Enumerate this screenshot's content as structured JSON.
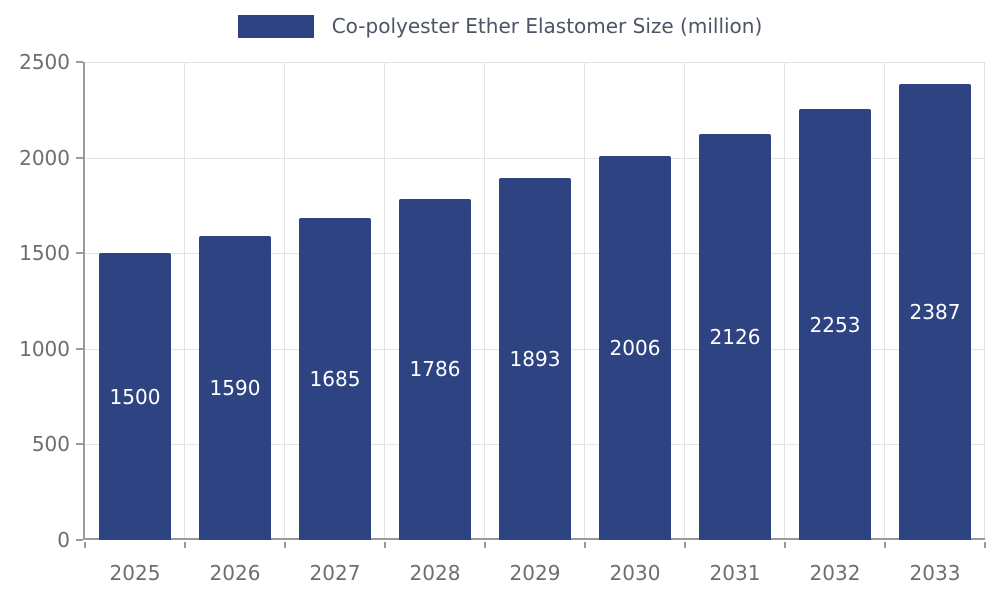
{
  "chart_data": {
    "type": "bar",
    "title": "Co-polyester Ether Elastomer Size (million)",
    "categories": [
      "2025",
      "2026",
      "2027",
      "2028",
      "2029",
      "2030",
      "2031",
      "2032",
      "2033"
    ],
    "values": [
      1500,
      1590,
      1685,
      1786,
      1893,
      2006,
      2126,
      2253,
      2387
    ],
    "value_labels": [
      "1500",
      "1590",
      "1685",
      "1786",
      "1893",
      "2006",
      "2126",
      "2253",
      "2387"
    ],
    "xlabel": "",
    "ylabel": "",
    "ylim": [
      0,
      2500
    ],
    "yticks": [
      0,
      500,
      1000,
      1500,
      2000,
      2500
    ],
    "ytick_labels": [
      "0",
      "500",
      "1000",
      "1500",
      "2000",
      "2500"
    ],
    "grid": true,
    "legend_position": "top",
    "colors": {
      "bar": "#2e4482",
      "value_label": "#ffffff",
      "axis_label": "#6e6e6e",
      "grid": "#e3e3e3",
      "axis_line": "#9a9a9a",
      "title": "#4c5566",
      "background": "#ffffff"
    }
  }
}
